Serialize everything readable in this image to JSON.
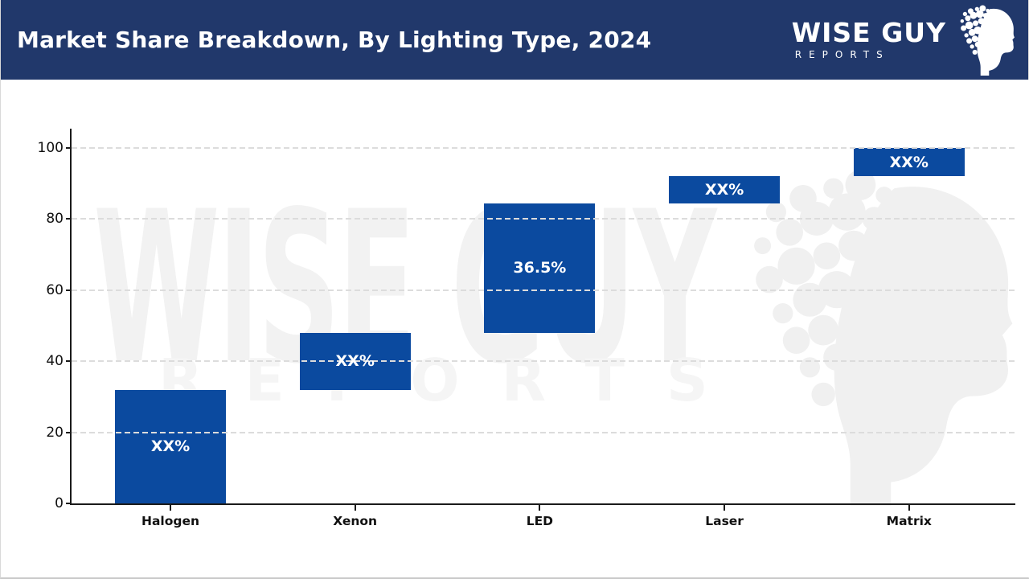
{
  "header": {
    "title": "Market Share Breakdown, By Lighting Type, 2024",
    "bg_color": "#21386b",
    "logo": {
      "name": "WISE GUY",
      "sub": "REPORTS"
    }
  },
  "watermark": {
    "big": "WISE GUY",
    "sub": "REPORTS"
  },
  "chart_data": {
    "type": "bar",
    "subtype": "waterfall",
    "title": "Market Share Breakdown, By Lighting Type, 2024",
    "categories": [
      "Halogen",
      "Xenon",
      "LED",
      "Laser",
      "Matrix"
    ],
    "segments": [
      {
        "category": "Halogen",
        "from": 0,
        "to": 32,
        "value": 32,
        "value_label": "XX%"
      },
      {
        "category": "Xenon",
        "from": 32,
        "to": 48,
        "value": 16,
        "value_label": "XX%"
      },
      {
        "category": "LED",
        "from": 48,
        "to": 84.5,
        "value": 36.5,
        "value_label": "36.5%"
      },
      {
        "category": "Laser",
        "from": 84.5,
        "to": 92,
        "value": 7.5,
        "value_label": "XX%"
      },
      {
        "category": "Matrix",
        "from": 92,
        "to": 100,
        "value": 8,
        "value_label": "XX%"
      }
    ],
    "yticks": [
      0,
      20,
      40,
      60,
      80,
      100
    ],
    "ylim": [
      0,
      105.5
    ],
    "xlabel": "",
    "ylabel": "",
    "grid": "horizontal-dashed",
    "legend": "none",
    "bar_color": "#0b4a9f",
    "bar_label_color": "#ffffff",
    "axis_color": "#1a1a1a"
  }
}
